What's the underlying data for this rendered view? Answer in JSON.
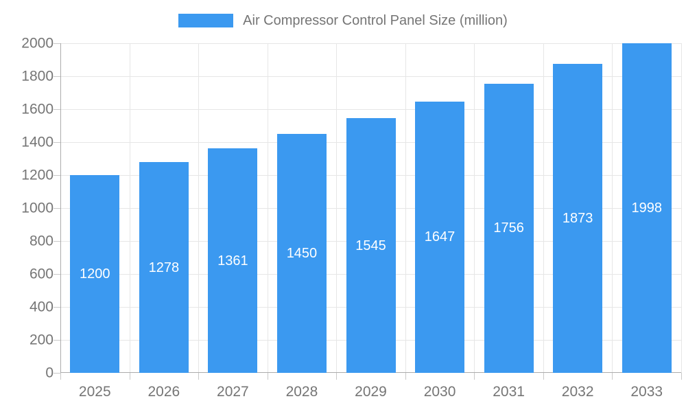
{
  "chart_data": {
    "type": "bar",
    "title": "Air Compressor Control Panel Size (million)",
    "legend": [
      "Air Compressor Control Panel Size (million)"
    ],
    "legend_position": "top-center",
    "categories": [
      "2025",
      "2026",
      "2027",
      "2028",
      "2029",
      "2030",
      "2031",
      "2032",
      "2033"
    ],
    "values": [
      1200,
      1278,
      1361,
      1450,
      1545,
      1647,
      1756,
      1873,
      1998
    ],
    "value_labels": [
      "1200",
      "1278",
      "1361",
      "1450",
      "1545",
      "1647",
      "1756",
      "1873",
      "1998"
    ],
    "xlabel": "",
    "ylabel": "",
    "ylim": [
      0,
      2000
    ],
    "ytick_step": 200,
    "ytick_labels": [
      "0",
      "200",
      "400",
      "600",
      "800",
      "1000",
      "1200",
      "1400",
      "1600",
      "1800",
      "2000"
    ],
    "grid": true,
    "colors": {
      "bar": "#3B99F0",
      "gridline": "#e6e6e6",
      "tick": "#c9c9c9",
      "axis_line": "#ababab",
      "axis_text": "#757575",
      "value_text": "#ffffff",
      "background": "#ffffff"
    }
  }
}
